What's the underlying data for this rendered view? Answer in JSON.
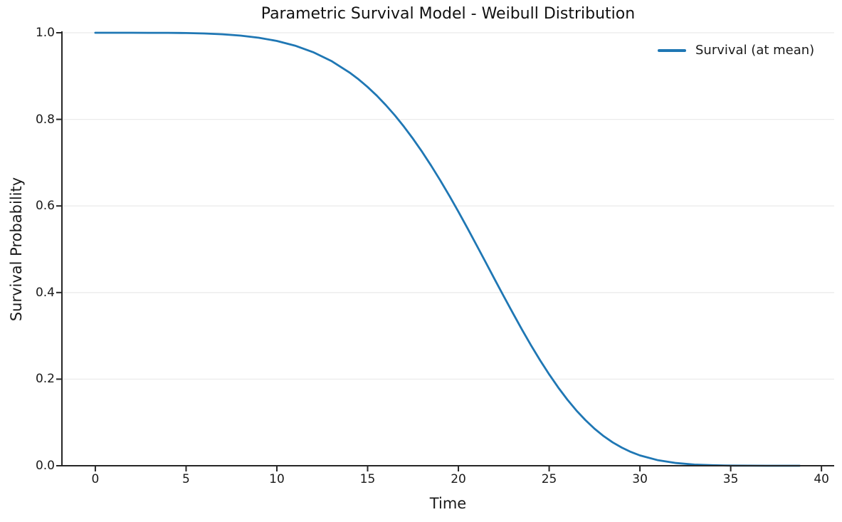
{
  "figure": {
    "title": "Parametric Survival Model - Weibull Distribution",
    "x_axis_label": "Time",
    "y_axis_label": "Survival Probability",
    "legend": {
      "entries": [
        {
          "label": "Survival (at mean)",
          "color": "#1f77b4"
        }
      ]
    },
    "colors": {
      "line": "#1f77b4",
      "axis": "#262626",
      "grid": "#ebebeb",
      "text": "#1a1a1a",
      "background": "#ffffff"
    }
  },
  "chart_data": {
    "type": "line",
    "title": "Parametric Survival Model - Weibull Distribution",
    "xlabel": "Time",
    "ylabel": "Survival Probability",
    "legend": [
      "Survival (at mean)"
    ],
    "legend_position": "upper right",
    "grid": "horizontal gridlines only, very light gray",
    "xlim": [
      -1.84,
      40.7
    ],
    "ylim": [
      0,
      1.0
    ],
    "x_ticks": {
      "values": [
        0,
        5,
        10,
        15,
        20,
        25,
        30,
        35,
        40
      ],
      "labels": [
        "0",
        "5",
        "10",
        "15",
        "20",
        "25",
        "30",
        "35",
        "40"
      ]
    },
    "y_ticks": {
      "values": [
        0,
        0.2,
        0.4,
        0.6,
        0.8,
        1.0
      ],
      "labels": [
        "0.0",
        "0.2",
        "0.4",
        "0.6",
        "0.8",
        "1.0"
      ]
    },
    "series": [
      {
        "name": "Survival (at mean)",
        "color": "#1f77b4",
        "x": [
          0,
          1,
          2,
          3,
          4,
          5,
          6,
          7,
          8,
          9,
          10,
          11,
          12,
          13,
          14,
          14.5,
          15,
          15.5,
          16,
          16.5,
          17,
          17.5,
          18,
          18.5,
          19,
          19.5,
          20,
          20.5,
          21,
          21.5,
          22,
          22.5,
          23,
          23.5,
          24,
          24.5,
          25,
          25.5,
          26,
          26.5,
          27,
          27.5,
          28,
          28.5,
          29,
          29.5,
          30,
          31,
          32,
          33,
          34,
          35,
          36,
          37,
          38,
          38.8
        ],
        "y": [
          1.0,
          1.0,
          1.0,
          0.9999,
          0.9998,
          0.9993,
          0.9984,
          0.9966,
          0.9935,
          0.9885,
          0.9811,
          0.9702,
          0.9551,
          0.9348,
          0.9082,
          0.8924,
          0.8746,
          0.8549,
          0.833,
          0.8092,
          0.7832,
          0.7551,
          0.7251,
          0.693,
          0.6592,
          0.6237,
          0.5868,
          0.5487,
          0.5097,
          0.4703,
          0.4306,
          0.3913,
          0.3525,
          0.3147,
          0.2782,
          0.2436,
          0.211,
          0.1807,
          0.1528,
          0.1277,
          0.1053,
          0.0856,
          0.0685,
          0.054,
          0.0419,
          0.0319,
          0.0239,
          0.0126,
          0.0062,
          0.0027,
          0.0011,
          0.0004,
          0.0001,
          0.0,
          0.0,
          0.0
        ]
      }
    ]
  }
}
